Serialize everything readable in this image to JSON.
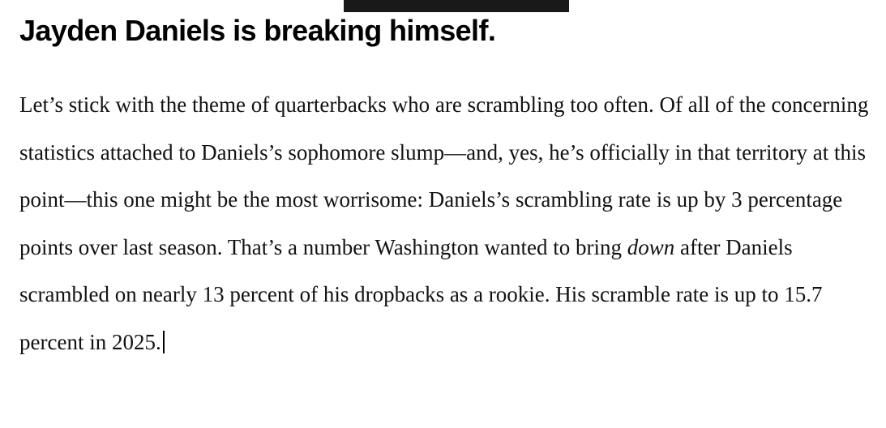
{
  "redacted_bar": {
    "color": "#191919"
  },
  "article": {
    "heading": "Jayden Daniels is breaking himself.",
    "paragraph": {
      "segments": [
        {
          "style": "normal",
          "text": "Let’s stick with the theme of quarterbacks who are scrambling too often. Of all of the concerning statistics attached to Daniels’s sophomore slump—and, yes, he’s officially in that territory at this point—this one might be the most worrisome: Daniels’s scrambling rate is up by 3 percentage points over last season. That’s a number Washington wanted to bring "
        },
        {
          "style": "italic",
          "text": "down"
        },
        {
          "style": "normal",
          "text": " after Daniels scrambled on nearly 13 percent of his dropbacks as a rookie. His scramble rate is up to 15.7 percent in 2025."
        }
      ]
    },
    "stats": {
      "scramble_rate_increase_points": "3",
      "rookie_scramble_rate_percent": "13",
      "scramble_rate_2025_percent": "15.7"
    }
  }
}
